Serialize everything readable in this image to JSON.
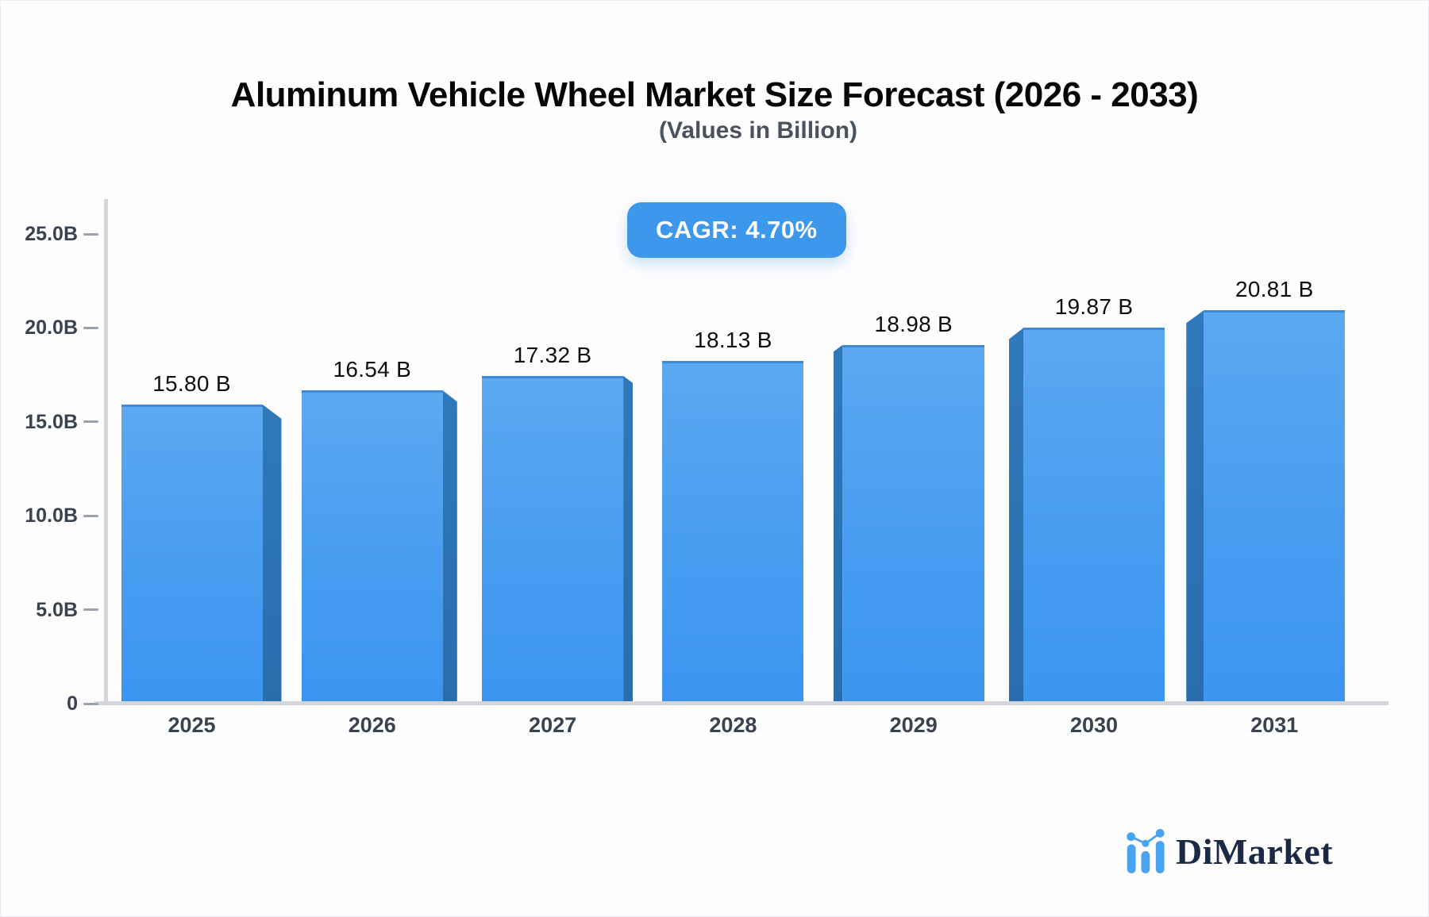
{
  "header": {
    "title": "Aluminum Vehicle Wheel Market Size Forecast (2026 - 2033)",
    "subtitle": "(Values in Billion)",
    "cagr_label": "CAGR: 4.70%"
  },
  "chart_data": {
    "type": "bar",
    "title": "Aluminum Vehicle Wheel Market Size Forecast (2026 - 2033)",
    "subtitle": "(Values in Billion)",
    "cagr_percent": "4.70%",
    "unit": "Billion",
    "categories": [
      "2025",
      "2026",
      "2027",
      "2028",
      "2029",
      "2030",
      "2031"
    ],
    "values": [
      15.8,
      16.54,
      17.32,
      18.13,
      18.98,
      19.87,
      20.81
    ],
    "value_labels": [
      "15.80 B",
      "16.54 B",
      "17.32 B",
      "18.13 B",
      "18.98 B",
      "19.87 B",
      "20.81 B"
    ],
    "y_ticks": [
      {
        "value": 0,
        "label": "0"
      },
      {
        "value": 5,
        "label": "5.0B"
      },
      {
        "value": 10,
        "label": "10.0B"
      },
      {
        "value": 15,
        "label": "15.0B"
      },
      {
        "value": 20,
        "label": "20.0B"
      },
      {
        "value": 25,
        "label": "25.0B"
      }
    ],
    "ylim": [
      0,
      25
    ],
    "grid": false,
    "legend": false,
    "bar_color": "#4b9ef0",
    "bar_side_color": "#2d74b5",
    "accent_color": "#3d97eb"
  },
  "footer": {
    "brand": "DiMarket",
    "logo_icon": "mini-bar-chart-icon",
    "brand_color": "#1b2a44",
    "icon_color": "#4aa3f0"
  }
}
